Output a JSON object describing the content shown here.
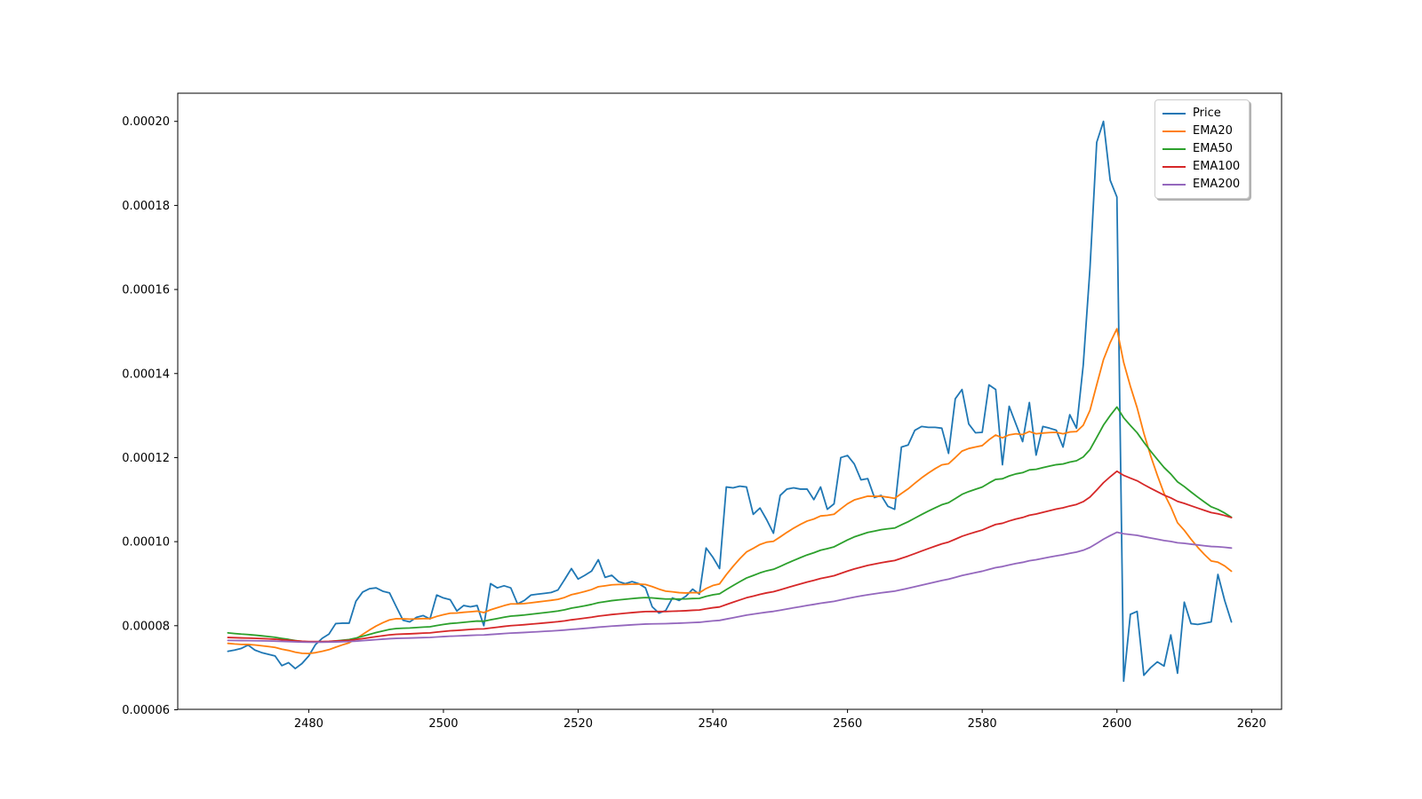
{
  "page": {
    "background": "#ffffff",
    "plot_background": "#ffffff",
    "axis_color": "#000000"
  },
  "chart_data": {
    "type": "line",
    "title": "",
    "xlabel": "",
    "ylabel": "",
    "grid": false,
    "legend_position": "upper-right",
    "x_start": 2468,
    "x_step": 1,
    "xlim": [
      2460.55,
      2624.45
    ],
    "ylim": [
      6.01e-05,
      0.0002067
    ],
    "x_ticks": [
      2480,
      2500,
      2520,
      2540,
      2560,
      2580,
      2600,
      2620
    ],
    "y_ticks": [
      6e-05,
      8e-05,
      0.0001,
      0.00012,
      0.00014,
      0.00016,
      0.00018,
      0.0002
    ],
    "series": [
      {
        "name": "Price",
        "color": "#1f77b4",
        "kind": "values",
        "values": [
          7.39e-05,
          7.42e-05,
          7.46e-05,
          7.54e-05,
          7.42e-05,
          7.36e-05,
          7.32e-05,
          7.28e-05,
          7.05e-05,
          7.12e-05,
          6.98e-05,
          7.1e-05,
          7.28e-05,
          7.55e-05,
          7.7e-05,
          7.8e-05,
          8.05e-05,
          8.06e-05,
          8.06e-05,
          8.58e-05,
          8.8e-05,
          8.88e-05,
          8.9e-05,
          8.82e-05,
          8.78e-05,
          8.45e-05,
          8.13e-05,
          8.09e-05,
          8.2e-05,
          8.24e-05,
          8.16e-05,
          8.73e-05,
          8.66e-05,
          8.62e-05,
          8.35e-05,
          8.48e-05,
          8.45e-05,
          8.48e-05,
          8e-05,
          9e-05,
          8.9e-05,
          8.95e-05,
          8.9e-05,
          8.52e-05,
          8.6e-05,
          8.73e-05,
          8.75e-05,
          8.77e-05,
          8.79e-05,
          8.85e-05,
          9.1e-05,
          9.36e-05,
          9.11e-05,
          9.2e-05,
          9.3e-05,
          9.57e-05,
          9.15e-05,
          9.2e-05,
          9.05e-05,
          9e-05,
          9.05e-05,
          9e-05,
          8.9e-05,
          8.45e-05,
          8.3e-05,
          8.36e-05,
          8.66e-05,
          8.6e-05,
          8.7e-05,
          8.87e-05,
          8.75e-05,
          9.85e-05,
          9.63e-05,
          9.36e-05,
          0.000113,
          0.0001128,
          0.0001132,
          0.000113,
          0.0001065,
          0.000108,
          0.0001052,
          0.000102,
          0.000111,
          0.0001125,
          0.0001128,
          0.0001125,
          0.0001125,
          0.00011,
          0.000113,
          0.0001077,
          0.000109,
          0.00012,
          0.0001205,
          0.0001185,
          0.0001147,
          0.000115,
          0.0001105,
          0.000111,
          0.0001084,
          0.0001077,
          0.0001225,
          0.000123,
          0.0001265,
          0.0001274,
          0.0001272,
          0.0001272,
          0.000127,
          0.000121,
          0.000134,
          0.0001362,
          0.000128,
          0.0001259,
          0.000126,
          0.0001373,
          0.0001362,
          0.0001183,
          0.0001322,
          0.000128,
          0.0001238,
          0.0001331,
          0.0001206,
          0.0001274,
          0.000127,
          0.0001265,
          0.0001225,
          0.0001302,
          0.000127,
          0.000142,
          0.000165,
          0.000195,
          0.0002,
          0.000186,
          0.000182,
          6.68e-05,
          8.27e-05,
          8.34e-05,
          6.82e-05,
          7e-05,
          7.14e-05,
          7.04e-05,
          7.78e-05,
          6.87e-05,
          8.56e-05,
          8.05e-05,
          8.03e-05,
          8.06e-05,
          8.09e-05,
          9.22e-05,
          8.6e-05,
          8.09e-05
        ]
      },
      {
        "name": "EMA20",
        "color": "#ff7f0e",
        "kind": "ema_of_price",
        "period": 20,
        "seed": 7.58e-05
      },
      {
        "name": "EMA50",
        "color": "#2ca02c",
        "kind": "ema_of_price",
        "period": 50,
        "seed": 7.83e-05
      },
      {
        "name": "EMA100",
        "color": "#d62728",
        "kind": "ema_of_price",
        "period": 100,
        "seed": 7.72e-05
      },
      {
        "name": "EMA200",
        "color": "#9467bd",
        "kind": "ema_of_price",
        "period": 200,
        "seed": 7.65e-05
      }
    ]
  }
}
